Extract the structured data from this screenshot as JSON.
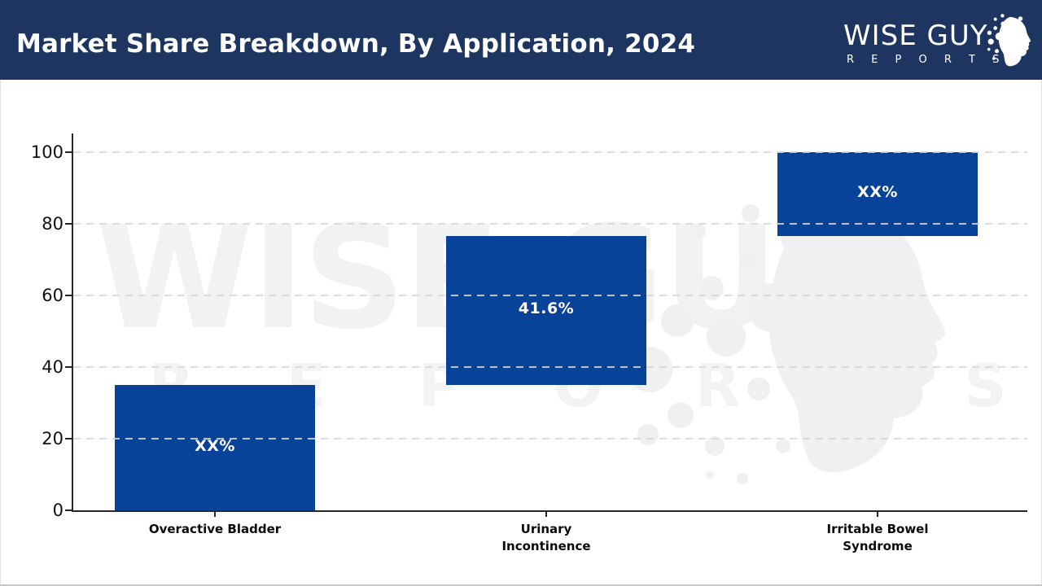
{
  "header": {
    "title": "Market Share Breakdown, By Application, 2024",
    "background_color": "#1e3562",
    "logo": {
      "wise_guy": "WISE GUY",
      "reports": "R E P O R T S"
    }
  },
  "watermark": {
    "wise_guy": "WISE GUY",
    "reports": "R E P O R T S"
  },
  "chart_data": {
    "type": "bar",
    "subtype": "floating-segment-waterfall",
    "title": "Market Share Breakdown, By Application, 2024",
    "xlabel": "",
    "ylabel": "",
    "ylim": [
      0,
      100
    ],
    "yticks": [
      0,
      20,
      40,
      60,
      80,
      100
    ],
    "grid": "horizontal-dashed",
    "legend": "none",
    "bar_color": "#084299",
    "bar_label_color": "#ffffff",
    "categories": [
      "Overactive Bladder",
      "Urinary Incontinence",
      "Irritable Bowel Syndrome"
    ],
    "category_label_lines": [
      [
        "Overactive Bladder"
      ],
      [
        "Urinary",
        "Incontinence"
      ],
      [
        "Irritable Bowel",
        "Syndrome"
      ]
    ],
    "segments": [
      {
        "category": "Overactive Bladder",
        "start": 0,
        "end": 35,
        "value": 35,
        "label": "XX%"
      },
      {
        "category": "Urinary Incontinence",
        "start": 35,
        "end": 76.6,
        "value": 41.6,
        "label": "41.6%"
      },
      {
        "category": "Irritable Bowel Syndrome",
        "start": 76.6,
        "end": 100,
        "value": 23.4,
        "label": "XX%"
      }
    ]
  }
}
